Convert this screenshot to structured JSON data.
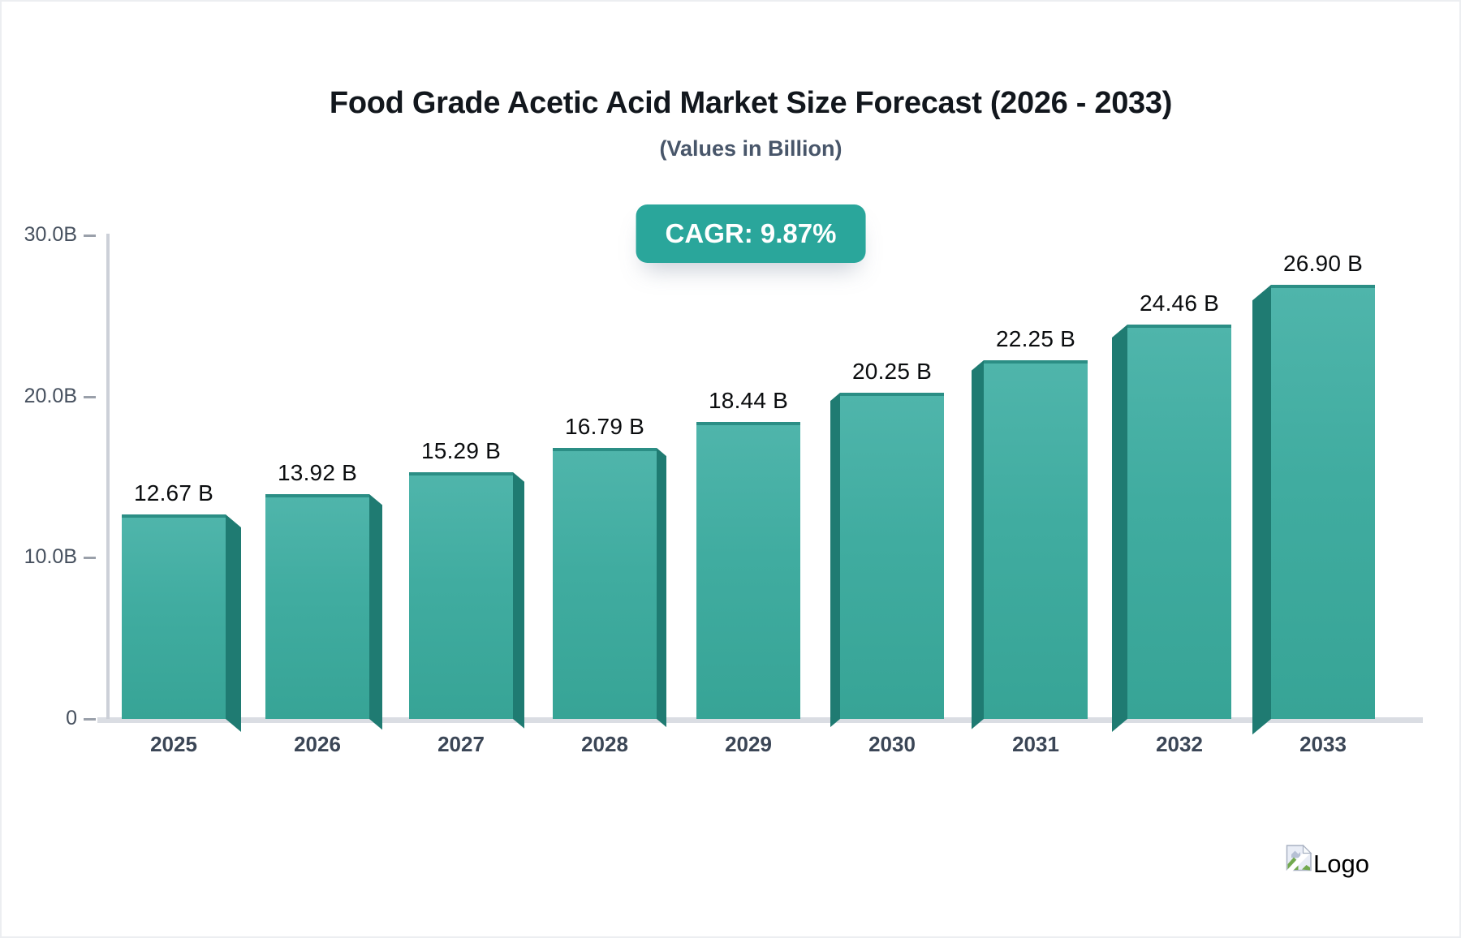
{
  "header": {
    "title": "Food Grade Acetic Acid Market Size Forecast (2026 - 2033)",
    "subtitle": "(Values in Billion)"
  },
  "badge": {
    "label": "CAGR: 9.87%"
  },
  "footer": {
    "logo_text": "Logo"
  },
  "chart_data": {
    "type": "bar",
    "title": "Food Grade Acetic Acid Market Size Forecast (2026 - 2033)",
    "subtitle": "(Values in Billion)",
    "cagr_label": "CAGR: 9.87%",
    "categories": [
      "2025",
      "2026",
      "2027",
      "2028",
      "2029",
      "2030",
      "2031",
      "2032",
      "2033"
    ],
    "values": [
      12.67,
      13.92,
      15.29,
      16.79,
      18.44,
      20.25,
      22.25,
      24.46,
      26.9
    ],
    "value_labels": [
      "12.67 B",
      "13.92 B",
      "15.29 B",
      "16.79 B",
      "18.44 B",
      "20.25 B",
      "22.25 B",
      "24.46 B",
      "26.90 B"
    ],
    "xlabel": "",
    "ylabel": "",
    "ylim": [
      0,
      30
    ],
    "grid": false,
    "legend": false,
    "yticks": [
      {
        "value": 30,
        "label": "30.0B"
      },
      {
        "value": 20,
        "label": "20.0B"
      },
      {
        "value": 10,
        "label": "10.0B"
      },
      {
        "value": 0,
        "label": "0"
      }
    ],
    "colors": {
      "bar_face_top": "#4fb5ab",
      "bar_face_mid": "#40aca0",
      "bar_face_bottom": "#37a496",
      "bar_top_edge": "#2b8e85",
      "bar_side": "#1f7b72",
      "badge_bg": "#2aa69b",
      "axis_line": "#ccd0d8",
      "baseline": "#dadde3",
      "tick_dash": "#9aa0aa",
      "tick_text": "#46505e",
      "year_text": "#3b4656",
      "value_text": "#0b0d0f"
    }
  }
}
